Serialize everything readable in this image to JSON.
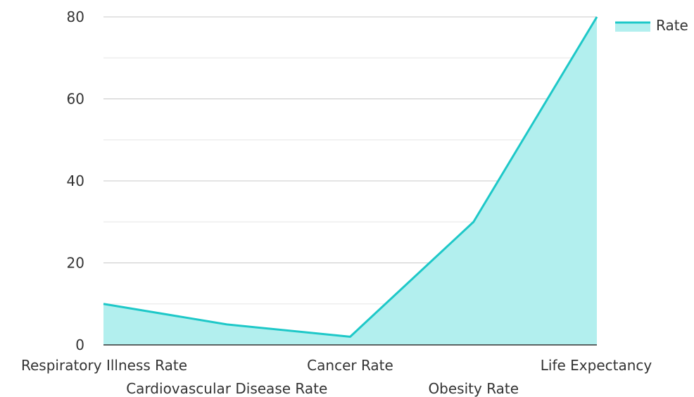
{
  "chart_data": {
    "type": "area",
    "title": "",
    "xlabel": "",
    "ylabel": "",
    "categories": [
      "Respiratory Illness Rate",
      "Cardiovascular Disease Rate",
      "Cancer Rate",
      "Obesity Rate",
      "Life Expectancy"
    ],
    "series": [
      {
        "name": "Rate",
        "values": [
          10,
          5,
          2,
          30,
          80
        ]
      }
    ],
    "ylim": [
      0,
      80
    ],
    "yticks": [
      0,
      20,
      40,
      60,
      80
    ],
    "grid": true,
    "legend_position": "top-right",
    "colors": {
      "line": "#1ec8c8",
      "fill": "#b2efee",
      "grid_major": "#c8c8c8",
      "grid_minor": "#e6e6e6",
      "axis": "#333333"
    }
  }
}
